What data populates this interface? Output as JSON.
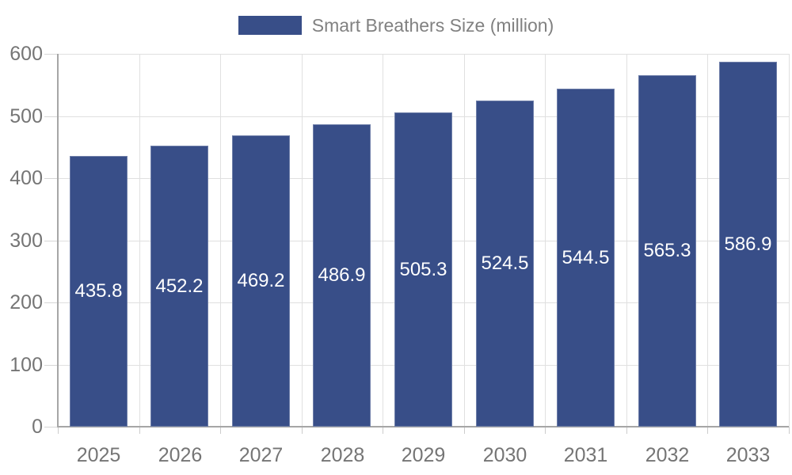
{
  "legend": {
    "label": "Smart Breathers Size (million)",
    "swatch_color": "#384E88"
  },
  "colors": {
    "bar": "#384E88",
    "bar_label_text": "#FFFFFF",
    "grid": "#E0E0E0",
    "axis_spine": "#A6A6A6",
    "tick": "#CCCCCC",
    "axis_text": "#757575",
    "legend_text": "#818181",
    "background": "#FFFFFF"
  },
  "chart_data": {
    "type": "bar",
    "title": "Smart Breathers Size (million)",
    "series": [
      {
        "name": "Smart Breathers Size (million)",
        "values": [
          435.8,
          452.2,
          469.2,
          486.9,
          505.3,
          524.5,
          544.5,
          565.3,
          586.9
        ],
        "color": "#384E88"
      }
    ],
    "categories": [
      "2025",
      "2026",
      "2027",
      "2028",
      "2029",
      "2030",
      "2031",
      "2032",
      "2033"
    ],
    "bar_labels": [
      "435.8",
      "452.2",
      "469.2",
      "486.9",
      "505.3",
      "524.5",
      "544.5",
      "565.3",
      "586.9"
    ],
    "bar_label_position": "inside-center",
    "xlabel": "",
    "ylabel": "",
    "ylim": [
      0,
      600
    ],
    "yticks": [
      "0",
      "100",
      "200",
      "300",
      "400",
      "500",
      "600"
    ],
    "grid": true,
    "legend_position": "top-center"
  }
}
